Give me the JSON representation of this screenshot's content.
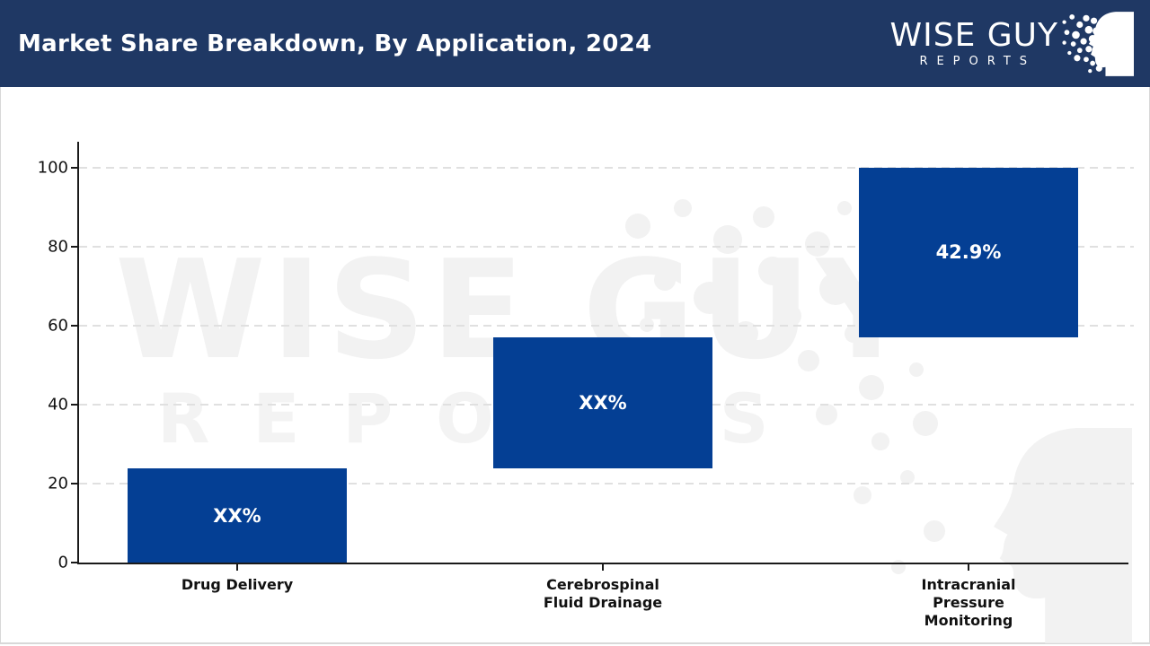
{
  "header": {
    "title": "Market Share Breakdown, By Application, 2024",
    "logo": {
      "line1": "WISE GUY",
      "line2": "REPORTS",
      "face_icon": "dotted-face-profile",
      "background": "#1f3864"
    }
  },
  "watermark": {
    "line1": "WISE GUY",
    "line2": "REPORTS"
  },
  "chart_data": {
    "type": "bar",
    "subtype": "floating_segment_bars",
    "title": "Market Share Breakdown, By Application, 2024",
    "categories": [
      "Drug Delivery",
      "Cerebrospinal Fluid Drainage",
      "Intracranial Pressure Monitoring"
    ],
    "category_label_lines": [
      [
        "Drug Delivery"
      ],
      [
        "Cerebrospinal",
        "Fluid Drainage"
      ],
      [
        "Intracranial",
        "Pressure",
        "Monitoring"
      ]
    ],
    "segments": [
      {
        "category": "Drug Delivery",
        "start": 0,
        "end": 23.8,
        "label": "XX%"
      },
      {
        "category": "Cerebrospinal Fluid Drainage",
        "start": 23.8,
        "end": 57.1,
        "label": "XX%"
      },
      {
        "category": "Intracranial Pressure Monitoring",
        "start": 57.1,
        "end": 100,
        "label": "42.9%"
      }
    ],
    "bar_value_labels": [
      "XX%",
      "XX%",
      "42.9%"
    ],
    "segment_size_estimates_pct": [
      23.8,
      33.3,
      42.9
    ],
    "y_ticks": [
      0,
      20,
      40,
      60,
      80,
      100
    ],
    "ylim": [
      0,
      100
    ],
    "xlabel": "",
    "ylabel": "",
    "grid": "horizontal_dashed",
    "legend": "none",
    "bar_color": "#043f94",
    "bar_label_color": "#ffffff",
    "axis_color": "#1a1a1a",
    "header_color": "#1f3864"
  }
}
